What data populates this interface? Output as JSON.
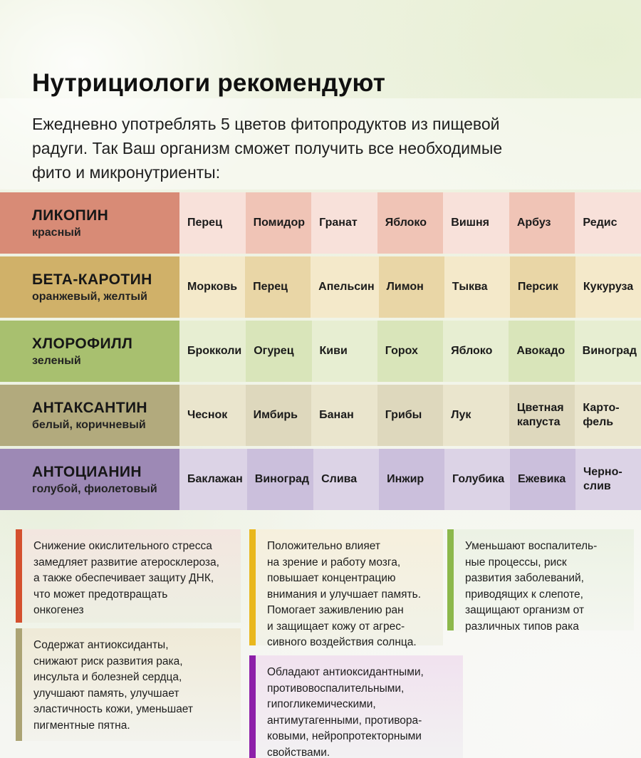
{
  "page": {
    "title": "Нутрициологи рекомендуют",
    "intro": "Ежедневно употреблять 5 цветов фитопродуктов из пищевой\nрадуги. Так Ваш организм сможет получить все необходимые\nфито и микронутриенты:"
  },
  "table": {
    "rows": [
      {
        "pigment": "ЛИКОПИН",
        "colors_label": "красный",
        "header_color": "#d88b76",
        "cell_light": "#f8e1da",
        "cell_dark": "#f0c4b6",
        "foods": [
          "Перец",
          "Помидор",
          "Гранат",
          "Яблоко",
          "Вишня",
          "Арбуз",
          "Редис"
        ]
      },
      {
        "pigment": "БЕТА-КАРОТИН",
        "colors_label": "оранжевый, желтый",
        "header_color": "#d0b169",
        "cell_light": "#f4e9ca",
        "cell_dark": "#e9d6a6",
        "foods": [
          "Морковь",
          "Перец",
          "Апельсин",
          "Лимон",
          "Тыква",
          "Персик",
          "Кукуруза"
        ]
      },
      {
        "pigment": "ХЛОРОФИЛЛ",
        "colors_label": "зеленый",
        "header_color": "#a8c06f",
        "cell_light": "#e7eed2",
        "cell_dark": "#d9e5ba",
        "foods": [
          "Брокколи",
          "Огурец",
          "Киви",
          "Горох",
          "Яблоко",
          "Авокадо",
          "Виноград"
        ]
      },
      {
        "pigment": "АНТАКСАНТИН",
        "colors_label": "белый, коричневый",
        "header_color": "#b2aa7d",
        "cell_light": "#eae5cd",
        "cell_dark": "#ded8bd",
        "foods": [
          "Чеснок",
          "Имбирь",
          "Банан",
          "Грибы",
          "Лук",
          "Цветная\nкапуста",
          "Карто-\nфель"
        ]
      },
      {
        "pigment": "АНТОЦИАНИН",
        "colors_label": "голубой, фиолетовый",
        "header_color": "#9d89b5",
        "cell_light": "#dcd3e6",
        "cell_dark": "#cbbfdc",
        "foods": [
          "Баклажан",
          "Виноград",
          "Слива",
          "Инжир",
          "Голубика",
          "Ежевика",
          "Черно-\nслив"
        ]
      }
    ]
  },
  "notes": [
    {
      "accent_color": "#d4502e",
      "text": "Снижение окислительного стресса\nзамедляет развитие атеросклероза,\nа также обеспечивает защиту ДНК,\nчто может предотвращать\nонкогенез"
    },
    {
      "accent_color": "#e9b71d",
      "text": "Положительно влияет\nна зрение и работу мозга,\nповышает концентрацию\nвнимания и улучшает память.\nПомогает заживлению ран\nи защищает кожу от агрес-\nсивного воздействия солнца."
    },
    {
      "accent_color": "#8cb84b",
      "text": "Уменьшают воспалитель-\nные процессы, риск\nразвития заболеваний,\nприводящих к слепоте,\nзащищают организм от\nразличных типов рака"
    },
    {
      "accent_color": "#aba374",
      "text": "Содержат антиоксиданты,\nснижают риск развития рака,\nинсульта и болезней сердца,\nулучшают память, улучшает\nэластичность кожи, уменьшает\nпигментные пятна."
    },
    {
      "accent_color": "#8d1fa9",
      "text": "Обладают антиоксидантными,\nпротивовоспалительными,\nгипогликемическими,\nантимутагенными, противора-\nковыми, нейропротекторными\nсвойствами."
    }
  ]
}
